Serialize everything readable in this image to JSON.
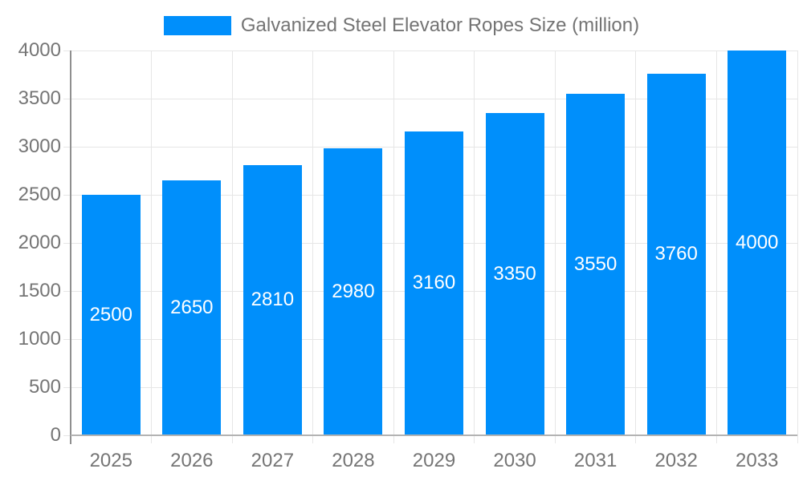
{
  "chart_data": {
    "type": "bar",
    "title": "Galvanized Steel Elevator Ropes Size (million)",
    "categories": [
      "2025",
      "2026",
      "2027",
      "2028",
      "2029",
      "2030",
      "2031",
      "2032",
      "2033"
    ],
    "values": [
      2500,
      2650,
      2810,
      2980,
      3160,
      3350,
      3550,
      3760,
      4000
    ],
    "xlabel": "",
    "ylabel": "",
    "ylim": [
      0,
      4000
    ],
    "yticks": [
      0,
      500,
      1000,
      1500,
      2000,
      2500,
      3000,
      3500,
      4000
    ],
    "grid": true,
    "legend_position": "top",
    "data_labels_position": "inside-center",
    "colors": {
      "bar": "#008FFB",
      "grid": "#e6e6e6",
      "y_axis_line": "#8f8f8f",
      "x_axis_line": "#b3b3b3",
      "tick_label": "#757575",
      "legend_text": "#747474",
      "data_label": "#ffffff",
      "background": "#ffffff"
    }
  }
}
